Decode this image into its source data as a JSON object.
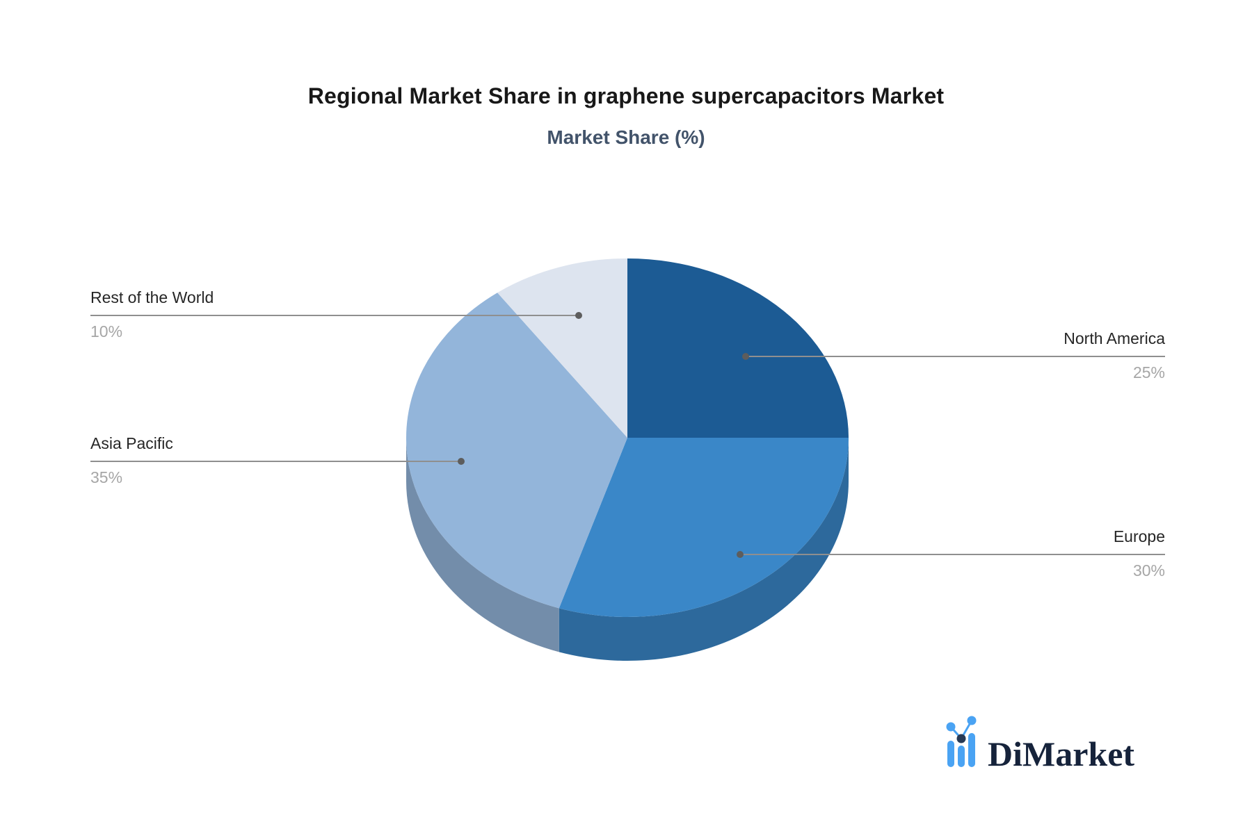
{
  "header": {
    "title": "Regional Market Share in graphene supercapacitors Market",
    "subtitle": "Market Share (%)"
  },
  "chart_data": {
    "type": "pie",
    "style": "3d-pie",
    "title": "Regional Market Share in graphene supercapacitors Market",
    "subtitle": "Market Share (%)",
    "unit": "%",
    "start_angle_deg": 0,
    "direction": "clockwise",
    "labels": [
      "North America",
      "Europe",
      "Asia Pacific",
      "Rest of the World"
    ],
    "values": [
      25,
      30,
      35,
      10
    ],
    "colors": [
      "#1c5b94",
      "#3a87c8",
      "#93b5da",
      "#dde4ef"
    ],
    "legend_position": "callout-labels",
    "leader_line_color": "#8f8f8f",
    "label_color": "#262626",
    "value_color": "#a6a6a6"
  },
  "callouts": [
    {
      "label": "North America",
      "value_text": "25%",
      "side": "right"
    },
    {
      "label": "Europe",
      "value_text": "30%",
      "side": "right"
    },
    {
      "label": "Asia Pacific",
      "value_text": "35%",
      "side": "left"
    },
    {
      "label": "Rest of the World",
      "value_text": "10%",
      "side": "left"
    }
  ],
  "brand": {
    "name": "DiMarket",
    "icon": "bar-chart-trend-icon",
    "accent_color": "#4aa3f3",
    "navy_color": "#16233b",
    "mid_dot_color": "#273a56"
  }
}
